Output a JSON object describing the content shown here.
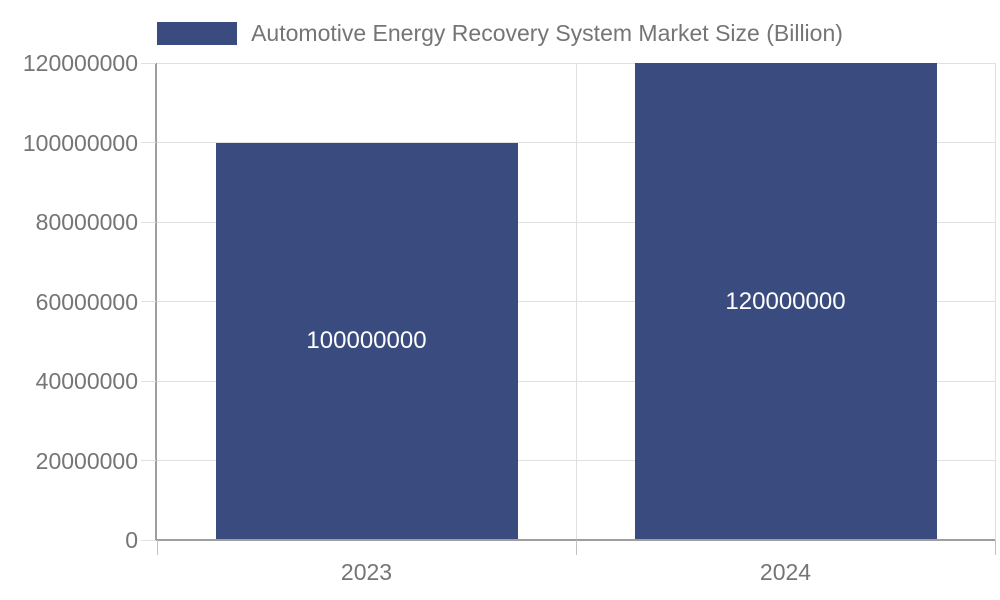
{
  "legend": {
    "label": "Automotive Energy Recovery System Market Size (Billion)"
  },
  "chart_data": {
    "type": "bar",
    "title": "Automotive Energy Recovery System Market Size (Billion)",
    "categories": [
      "2023",
      "2024"
    ],
    "series": [
      {
        "name": "Automotive Energy Recovery System Market Size (Billion)",
        "values": [
          100000000,
          120000000
        ]
      }
    ],
    "data_labels": [
      "100000000",
      "120000000"
    ],
    "xlabel": "",
    "ylabel": "",
    "ylim": [
      0,
      120000000
    ],
    "yticks": [
      0,
      20000000,
      40000000,
      60000000,
      80000000,
      100000000,
      120000000
    ],
    "grid": true,
    "legend_position": "top-center",
    "colors": {
      "bar": "#3A4B80",
      "bar_label_text": "#FFFFFF",
      "axis_text": "#757575",
      "legend_text": "#757575",
      "gridline": "#E0E0E0",
      "spine": "#9E9E9E",
      "background": "#FFFFFF"
    }
  }
}
